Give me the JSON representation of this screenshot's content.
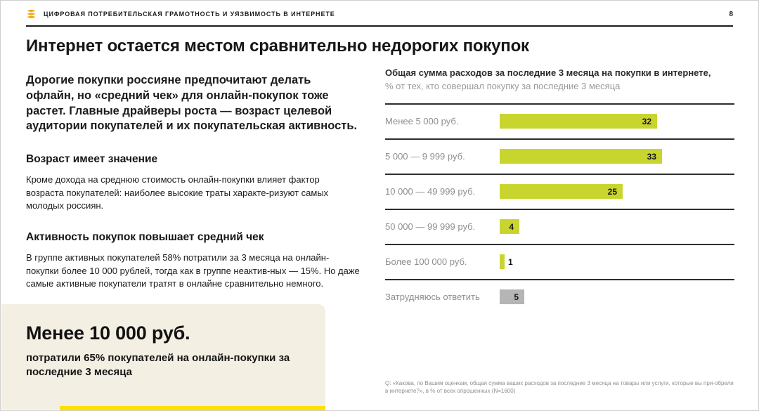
{
  "header": {
    "logo_icon": "layers-icon",
    "title": "ЦИФРОВАЯ ПОТРЕБИТЕЛЬСКАЯ ГРАМОТНОСТЬ И УЯЗВИМОСТЬ В ИНТЕРНЕТЕ",
    "page_number": "8"
  },
  "main": {
    "title": "Интернет остается местом сравнительно недорогих покупок",
    "intro": "Дорогие покупки россияне предпочитают делать офлайн, но «средний чек» для онлайн-покупок тоже растет. Главные драйверы роста — возраст целевой аудитории покупателей и их покупательская активность.",
    "sections": [
      {
        "title": "Возраст имеет значение",
        "text": "Кроме дохода на среднюю стоимость онлайн-покупки влияет фактор возраста покупателей: наиболее высокие траты характе-ризуют самых молодых россиян."
      },
      {
        "title": "Активность покупок повышает средний чек",
        "text": "В группе активных покупателей 58% потратили за 3 месяца на онлайн-покупки более 10 000 рублей, тогда как в группе неактив-ных — 15%. Но даже самые активные покупатели тратят в онлайне сравнительно немного."
      }
    ],
    "highlight": {
      "title": "Менее 10 000 руб.",
      "text": "потратили 65% покупателей на онлайн-покупки за последние 3 месяца"
    }
  },
  "chart_data": {
    "type": "bar",
    "orientation": "horizontal",
    "title": "Общая сумма расходов за последние 3 месяца на покупки в интернете,",
    "subtitle": "% от тех, кто совершал покупку за последние 3 месяца",
    "categories": [
      "Менее 5 000 руб.",
      "5 000 — 9 999 руб.",
      "10 000 — 49 999 руб.",
      "50 000 — 99 999 руб.",
      "Более 100 000 руб.",
      "Затрудняюсь ответить"
    ],
    "values": [
      32,
      33,
      25,
      4,
      1,
      5
    ],
    "bar_colors": [
      "#c9d52f",
      "#c9d52f",
      "#c9d52f",
      "#c9d52f",
      "#c9d52f",
      "#b5b5b5"
    ],
    "xlim": [
      0,
      35
    ],
    "unit": "%",
    "grid": "row-separators",
    "legend": "none"
  },
  "footnote": "Q: «Какова, по Вашим оценкам, общая сумма ваших расходов за последние 3 месяца на товары или услуги, которые вы при-обрели в интернете?», в % от всех опрошенных (N=1600)",
  "colors": {
    "accent_lime": "#c9d52f",
    "neutral_gray": "#b5b5b5",
    "logo_yellow": "#f1a904",
    "highlight_bg": "#f4efe3",
    "bottom_strip_yellow": "#ffdf00",
    "text_dark": "#1c1c1c",
    "text_gray": "#8f8f8f"
  }
}
